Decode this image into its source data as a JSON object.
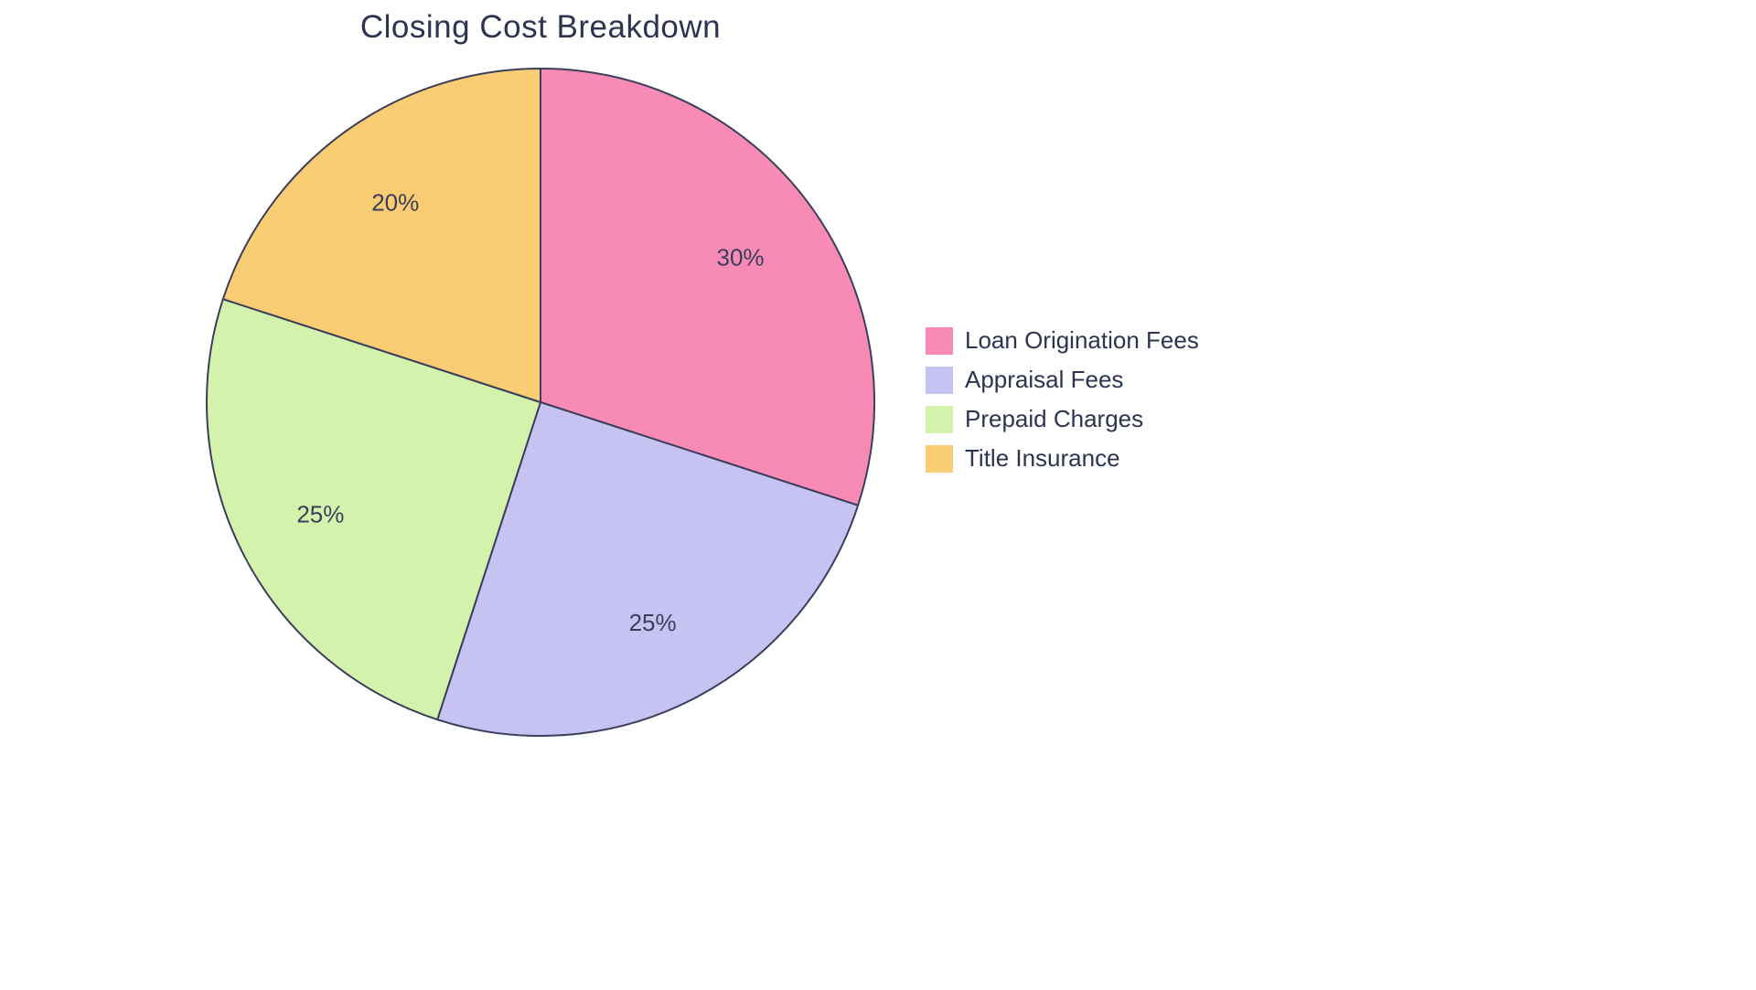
{
  "page": {
    "background": "#FFFFFF"
  },
  "chart_data": {
    "type": "pie",
    "title": "Closing Cost Breakdown",
    "labels": [
      "Loan Origination Fees",
      "Appraisal Fees",
      "Prepaid Charges",
      "Title Insurance"
    ],
    "values": [
      30,
      25,
      25,
      20
    ],
    "unit": "%",
    "slice_labels": [
      "30%",
      "25%",
      "25%",
      "20%"
    ],
    "colors": [
      "#F78BB6",
      "#C6C3F2",
      "#D3F3AC",
      "#FACD75"
    ],
    "start_angle_deg": 0,
    "direction": "clockwise",
    "stroke_color": "#3B3E5B",
    "stroke_width": 2,
    "label_color": "#3B3E5B",
    "legend": {
      "position": "right",
      "entries": [
        "Loan Origination Fees",
        "Appraisal Fees",
        "Prepaid Charges",
        "Title Insurance"
      ]
    }
  }
}
